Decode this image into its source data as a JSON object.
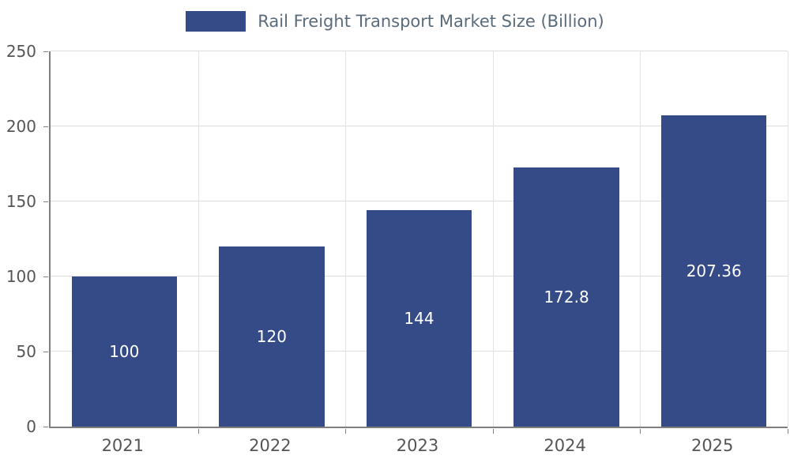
{
  "chart_data": {
    "type": "bar",
    "title": "Rail Freight Transport Market Size (Billion)",
    "categories": [
      "2021",
      "2022",
      "2023",
      "2024",
      "2025"
    ],
    "values": [
      100,
      120,
      144,
      172.8,
      207.36
    ],
    "value_labels": [
      "100",
      "120",
      "144",
      "172.8",
      "207.36"
    ],
    "xlabel": "",
    "ylabel": "",
    "ylim": [
      0,
      250
    ],
    "yticks": [
      0,
      50,
      100,
      150,
      200,
      250
    ],
    "grid": true,
    "legend_position": "top-center",
    "colors": {
      "bar": "#344b87",
      "legend_text": "#5a6b7b",
      "tick_text": "#555555",
      "gridline": "#dddddd",
      "spine": "#7f7f7f",
      "value_label_text": "#ffffff"
    }
  }
}
